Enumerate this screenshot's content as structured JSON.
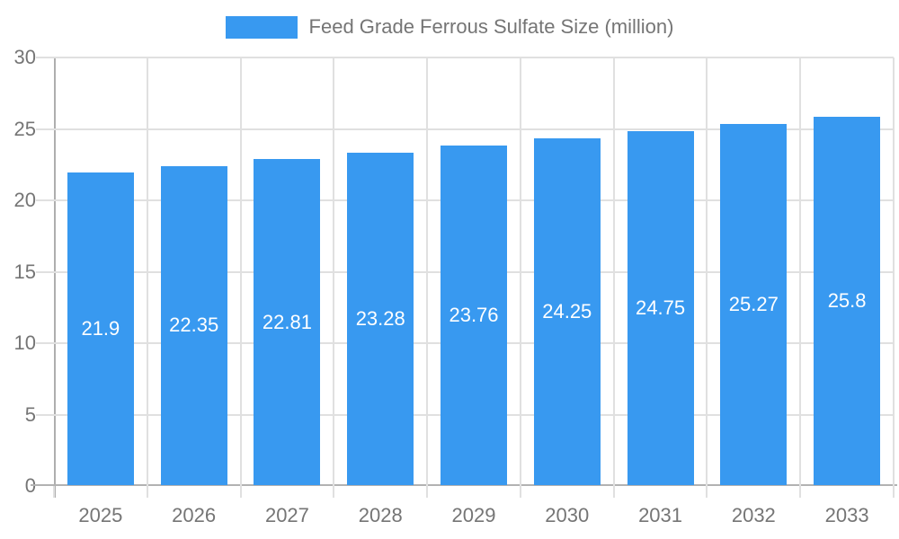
{
  "chart_data": {
    "type": "bar",
    "legend_label": "Feed Grade Ferrous Sulfate Size (million)",
    "categories": [
      "2025",
      "2026",
      "2027",
      "2028",
      "2029",
      "2030",
      "2031",
      "2032",
      "2033"
    ],
    "values": [
      21.9,
      22.35,
      22.81,
      23.28,
      23.76,
      24.25,
      24.75,
      25.27,
      25.8
    ],
    "value_labels": [
      "21.9",
      "22.35",
      "22.81",
      "23.28",
      "23.76",
      "24.25",
      "24.75",
      "25.27",
      "25.8"
    ],
    "title": "",
    "xlabel": "",
    "ylabel": "",
    "ylim": [
      0,
      30
    ],
    "yticks": [
      0,
      5,
      10,
      15,
      20,
      25,
      30
    ],
    "grid": true,
    "legend_position": "top-center",
    "colors": {
      "bar": "#3899f0",
      "gridline": "#e0e0e0",
      "axis_line": "#b0b0b0",
      "axis_text": "#757575",
      "value_text": "#ffffff",
      "background": "#ffffff"
    }
  }
}
